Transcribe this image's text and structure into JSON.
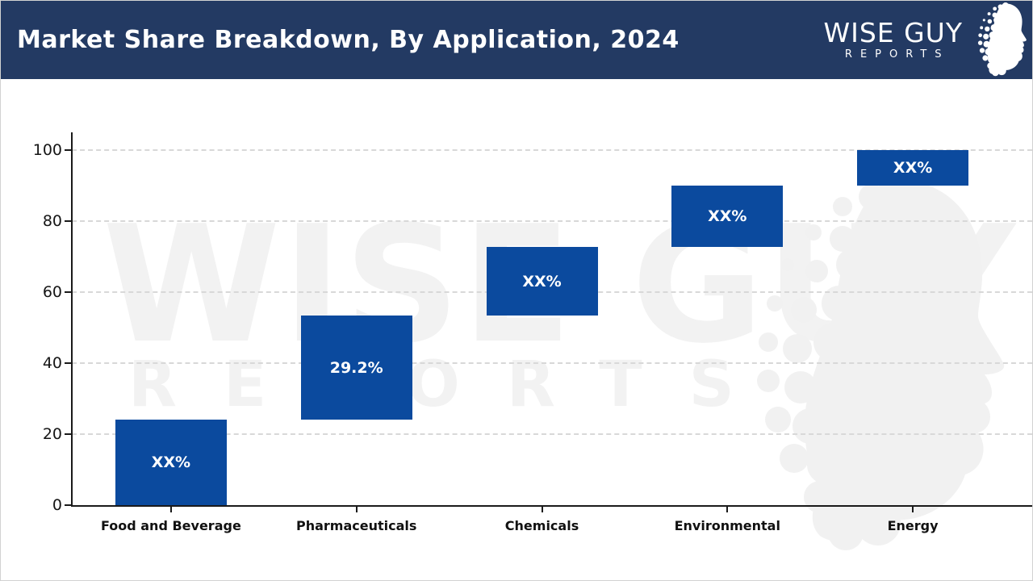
{
  "header": {
    "title": "Market Share Breakdown, By Application, 2024",
    "logo": {
      "line1": "WISE GUY",
      "line2": "REPORTS"
    }
  },
  "watermark": {
    "line1": "WISE GUY",
    "line2": "REPORTS"
  },
  "chart_data": {
    "type": "bar",
    "subtype": "waterfall",
    "title": "Market Share Breakdown, By Application, 2024",
    "categories": [
      "Food and Beverage",
      "Pharmaceuticals",
      "Chemicals",
      "Environmental",
      "Energy"
    ],
    "segments": [
      {
        "category": "Food and Beverage",
        "start": 0,
        "end": 24.1,
        "label": "XX%"
      },
      {
        "category": "Pharmaceuticals",
        "start": 24.1,
        "end": 53.3,
        "label": "29.2%"
      },
      {
        "category": "Chemicals",
        "start": 53.3,
        "end": 72.7,
        "label": "XX%"
      },
      {
        "category": "Environmental",
        "start": 72.7,
        "end": 90.0,
        "label": "XX%"
      },
      {
        "category": "Energy",
        "start": 90.0,
        "end": 100.0,
        "label": "XX%"
      }
    ],
    "yticks": [
      0,
      20,
      40,
      60,
      80,
      100
    ],
    "ylim": [
      0,
      105
    ],
    "xlabel": "",
    "ylabel": "",
    "grid": "dashed-horizontal",
    "legend": "none",
    "bar_color": "#0b4a9e",
    "bar_label_color": "#ffffff"
  },
  "colors": {
    "header_bg": "#233a63",
    "bar": "#0b4a9e",
    "grid": "#d8d8d8",
    "axis": "#1a1a1a",
    "watermark": "#f1f1f1",
    "page_border": "#d2d2d2"
  }
}
